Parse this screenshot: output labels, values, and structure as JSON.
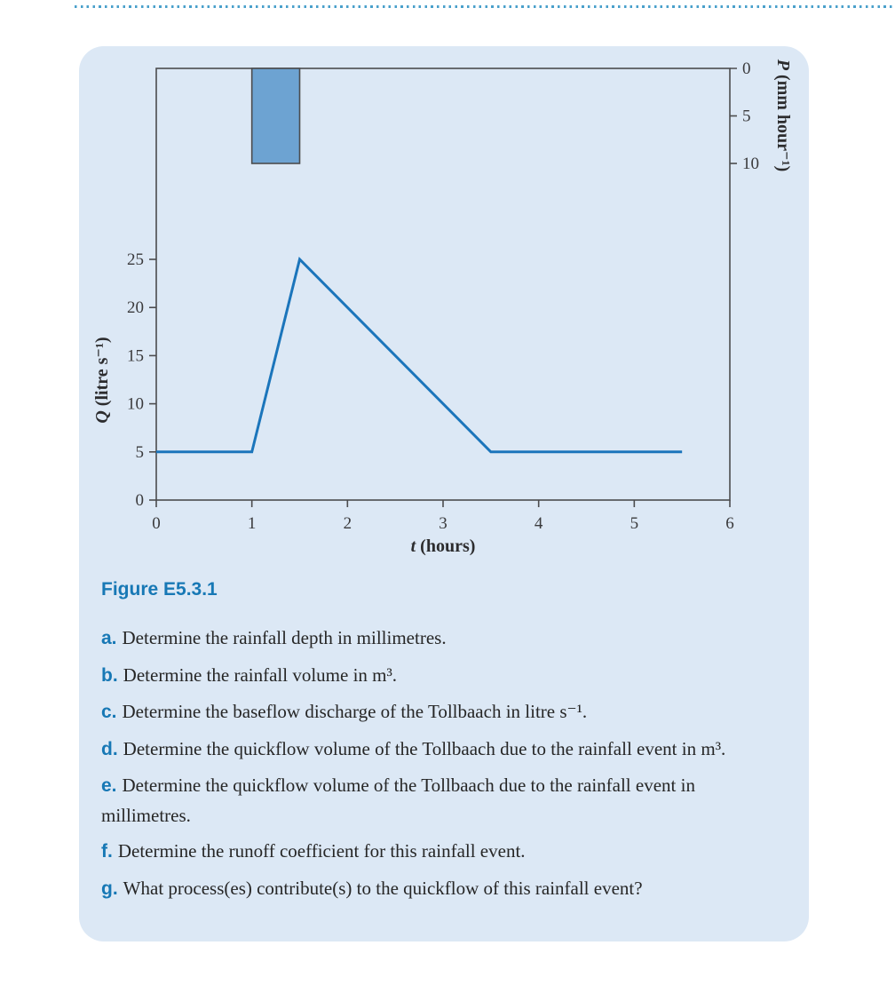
{
  "figure": {
    "caption": "Figure E5.3.1"
  },
  "chart_data": {
    "type": "line",
    "title": "",
    "x": {
      "label_var": "t",
      "label_unit": " (hours)",
      "ticks": [
        0,
        1,
        2,
        3,
        4,
        5,
        6
      ],
      "range": [
        0,
        6
      ]
    },
    "y_left": {
      "label_var": "Q",
      "label_unit": " (litre s⁻¹)",
      "ticks": [
        0,
        5,
        10,
        15,
        20,
        25
      ],
      "range": [
        0,
        45
      ]
    },
    "y_right": {
      "label_var": "P",
      "label_unit": " (mm hour⁻¹)",
      "ticks": [
        0,
        5,
        10
      ],
      "inverted_from_top": true
    },
    "hydrograph": {
      "name": "discharge",
      "points_t": [
        0,
        1,
        1.5,
        3.5,
        5.5
      ],
      "points_q": [
        5,
        5,
        25,
        5,
        5
      ],
      "color": "#1b75bb",
      "baseflow": 5,
      "peak": 25
    },
    "hyetograph": {
      "name": "rainfall",
      "bars": [
        {
          "t_start": 1,
          "t_end": 1.5,
          "intensity_mm_per_hour": 10
        }
      ],
      "fill": "#6da3d2",
      "stroke": "#4c4c4e"
    },
    "frame_color": "#4c4c4e",
    "tick_label_color": "#3a3a3c",
    "axis_label_color": "#2c2c2e",
    "background": "#dce8f5",
    "grid": false,
    "legend": false
  },
  "questions": [
    {
      "letter": "a.",
      "text": "Determine the rainfall depth in millimetres."
    },
    {
      "letter": "b.",
      "text": "Determine the rainfall volume in m³."
    },
    {
      "letter": "c.",
      "text": "Determine the baseflow discharge of the Tollbaach in litre s⁻¹."
    },
    {
      "letter": "d.",
      "text": "Determine the quickflow volume of the Tollbaach due to the rainfall event in m³."
    },
    {
      "letter": "e.",
      "text": "Determine the quickflow volume of the Tollbaach due to the rainfall event in millimetres."
    },
    {
      "letter": "f.",
      "text": "Determine the runoff coefficient for this rainfall event."
    },
    {
      "letter": "g.",
      "text": "What process(es) contribute(s) to the quickflow of this rainfall event?"
    }
  ]
}
